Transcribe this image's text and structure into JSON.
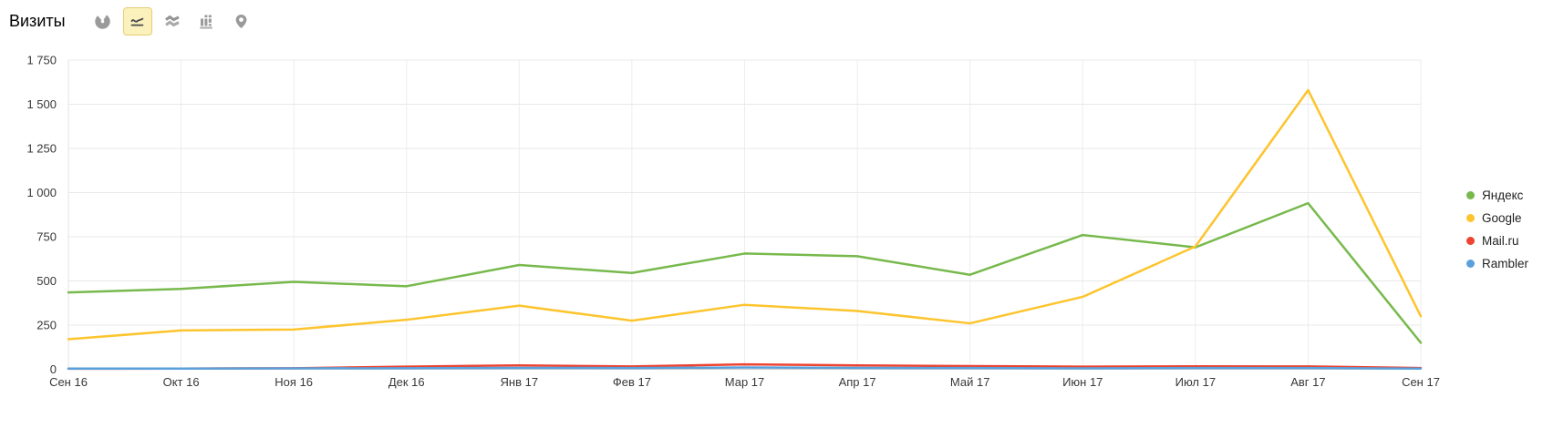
{
  "header": {
    "title": "Визиты",
    "toolbar": {
      "selected": "line",
      "buttons": [
        {
          "id": "pie",
          "icon": "pie-chart-icon"
        },
        {
          "id": "line",
          "icon": "line-chart-icon"
        },
        {
          "id": "area",
          "icon": "stacked-area-chart-icon"
        },
        {
          "id": "columns",
          "icon": "column-chart-icon"
        },
        {
          "id": "map",
          "icon": "geo-map-pin-icon"
        }
      ]
    }
  },
  "chart_data": {
    "type": "line",
    "title": "Визиты",
    "x": [
      "Сен 16",
      "Окт 16",
      "Ноя 16",
      "Дек 16",
      "Янв 17",
      "Фев 17",
      "Мар 17",
      "Апр 17",
      "Май 17",
      "Июн 17",
      "Июл 17",
      "Авг 17",
      "Сен 17"
    ],
    "series": [
      {
        "name": "Яндекс",
        "color": "#77b94c",
        "values": [
          435,
          455,
          495,
          470,
          590,
          545,
          655,
          640,
          535,
          760,
          690,
          940,
          150
        ]
      },
      {
        "name": "Google",
        "color": "#fdc42d",
        "values": [
          170,
          220,
          225,
          280,
          360,
          275,
          365,
          330,
          260,
          410,
          695,
          1580,
          300
        ]
      },
      {
        "name": "Mail.ru",
        "color": "#ed4330",
        "values": [
          3,
          4,
          6,
          15,
          22,
          16,
          28,
          22,
          18,
          15,
          17,
          16,
          7
        ]
      },
      {
        "name": "Rambler",
        "color": "#5aa1dc",
        "values": [
          4,
          4,
          5,
          6,
          8,
          7,
          10,
          8,
          7,
          5,
          7,
          7,
          4
        ]
      }
    ],
    "ylim": [
      0,
      1750
    ],
    "yticks": [
      0,
      250,
      500,
      750,
      1000,
      1250,
      1500,
      1750
    ],
    "ytick_labels": [
      "0",
      "250",
      "500",
      "750",
      "1 000",
      "1 250",
      "1 500",
      "1 750"
    ],
    "grid": true,
    "legend_position": "right",
    "colors": {
      "grid_h": "#e8e8e8",
      "grid_v": "#ededed",
      "axis": "#c9c9c9",
      "tick_text": "#383838",
      "toolbar_icon": "#9a9a9a",
      "toolbar_icon_selected": "#4a4a4a",
      "selected_bg": "#fbf1bd",
      "selected_border": "#e7cd74"
    }
  }
}
